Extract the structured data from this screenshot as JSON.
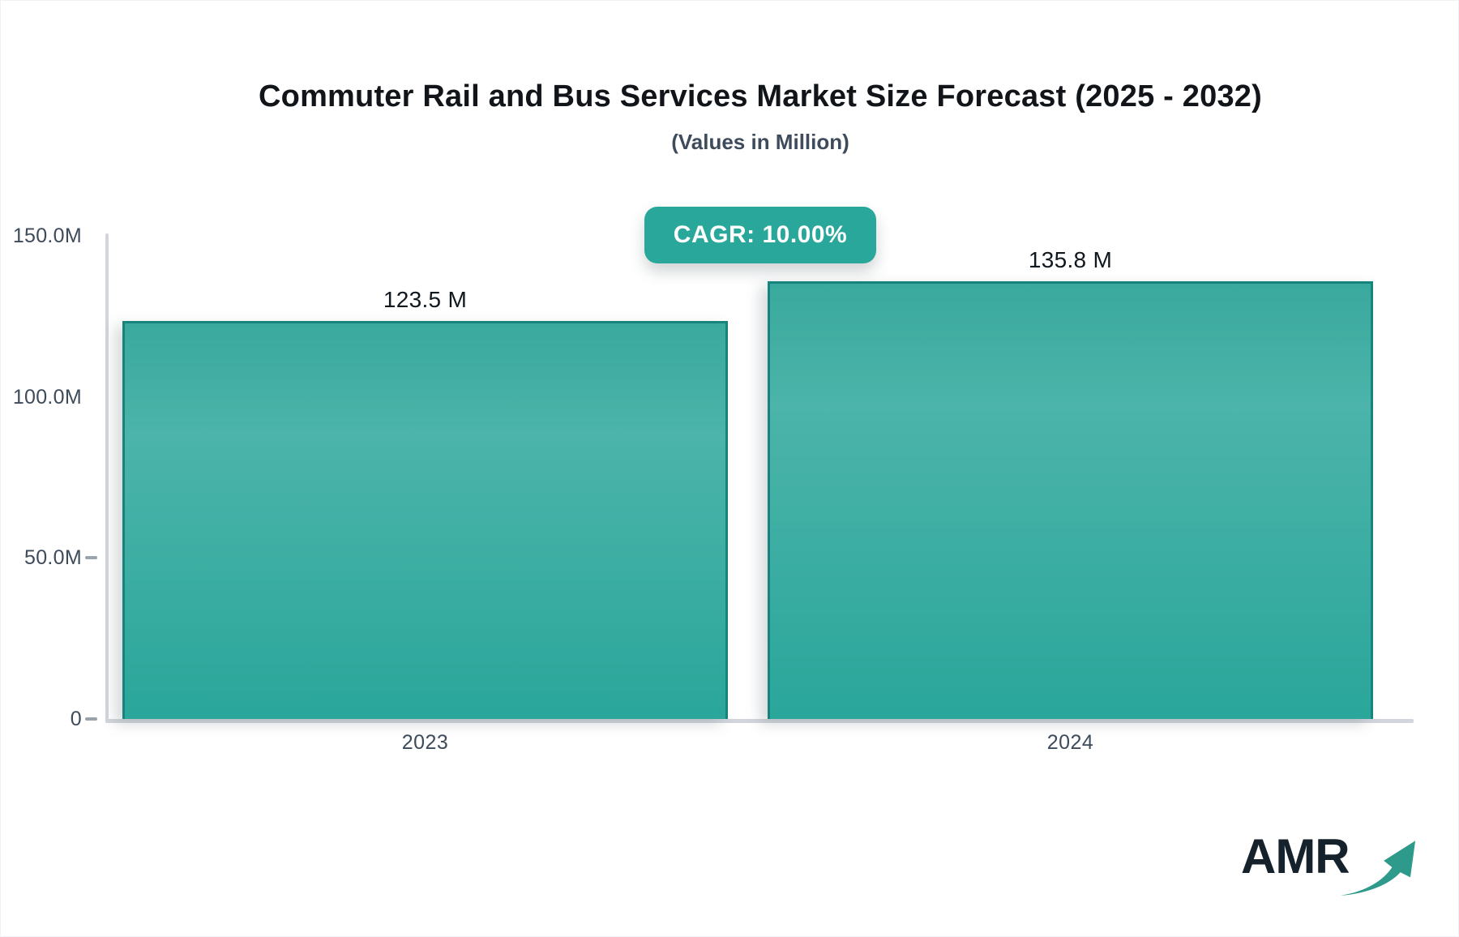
{
  "header": {
    "title": "Commuter Rail and Bus Services Market Size Forecast (2025 - 2032)",
    "subtitle": "(Values in Million)",
    "cagr_badge": "CAGR: 10.00%"
  },
  "chart_data": {
    "type": "bar",
    "title": "Commuter Rail and Bus Services Market Size Forecast (2025 - 2032)",
    "subtitle": "(Values in Million)",
    "cagr_percent": "10.00%",
    "categories": [
      "2023",
      "2024"
    ],
    "values": [
      123.5,
      135.8
    ],
    "value_labels": [
      "123.5 M",
      "135.8 M"
    ],
    "unit": "Million",
    "xlabel": "",
    "ylabel": "",
    "ylim": [
      0,
      150
    ],
    "yticks": [
      {
        "label": "150.0M",
        "value": 150,
        "dash": false
      },
      {
        "label": "100.0M",
        "value": 100,
        "dash": false
      },
      {
        "label": "50.0M",
        "value": 50,
        "dash": true
      },
      {
        "label": "0",
        "value": 0,
        "dash": true
      }
    ],
    "grid": false,
    "legend_position": "none"
  },
  "logo": {
    "text": "AMR"
  },
  "colors": {
    "badge_bg": "#2aa79b",
    "badge_text": "#ffffff",
    "bar_top": "#3aa99d",
    "bar_mid": "#4cb4aa",
    "bar_bottom": "#2aa69a",
    "bar_border": "#17837d",
    "axis_line": "#d2d6dc",
    "tick_text": "#3d4b5b",
    "title_text": "#111418",
    "value_text": "#10181f",
    "dash": "#9aa2ac",
    "logo_text": "#15222c",
    "logo_arrow": "#2d9a8c"
  }
}
